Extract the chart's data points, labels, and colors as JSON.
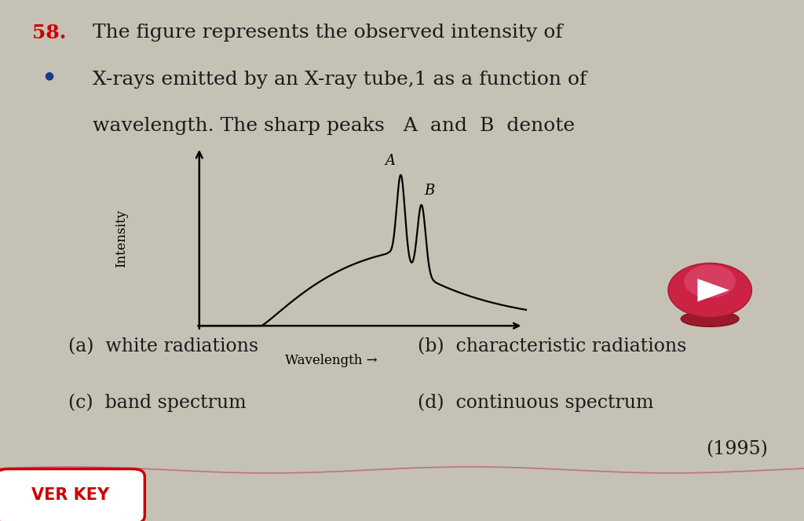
{
  "bg_color": "#c5c1b5",
  "plot_bg": "#e8e4da",
  "text_color": "#1a1a1a",
  "question_number": "58.",
  "question_text_line1": "The figure represents the observed intensity of",
  "question_text_line2": "X-rays emitted by an X-ray tube,1 as a function of",
  "question_text_line3": "wavelength. The sharp peaks   A  and  B  denote",
  "xlabel": "Wavelength →",
  "ylabel": "Intensity",
  "peak_A_label": "A",
  "peak_B_label": "B",
  "options_a": "(a)  white radiations",
  "options_b": "(b)  characteristic radiations",
  "options_c": "(c)  band spectrum",
  "options_d": "(d)  continuous spectrum",
  "year": "(1995)",
  "answer_key_text": "VER KEY",
  "answer_key_color": "#cc0000",
  "bullet_color": "#1a3a8a",
  "number_color": "#cc0000",
  "play_icon_bg": "#cc2244",
  "play_icon_top": "#e05060",
  "line_color": "#c06080",
  "font_size_main": 18,
  "font_size_options": 17
}
